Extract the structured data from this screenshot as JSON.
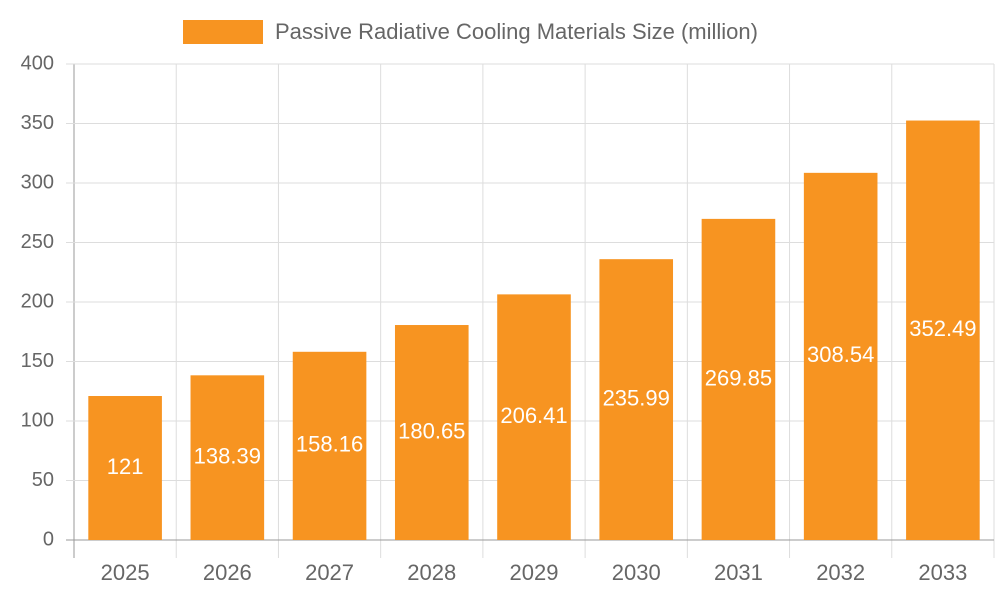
{
  "chart_data": {
    "type": "bar",
    "categories": [
      "2025",
      "2026",
      "2027",
      "2028",
      "2029",
      "2030",
      "2031",
      "2032",
      "2033"
    ],
    "series": [
      {
        "name": "Passive Radiative Cooling Materials Size (million)",
        "color": "#f79421",
        "values": [
          121,
          138.39,
          158.16,
          180.65,
          206.41,
          235.99,
          269.85,
          308.54,
          352.49
        ]
      }
    ],
    "ylim": [
      0,
      400
    ],
    "yticks": [
      0,
      50,
      100,
      150,
      200,
      250,
      300,
      350,
      400
    ],
    "grid": true,
    "legend": "top"
  }
}
